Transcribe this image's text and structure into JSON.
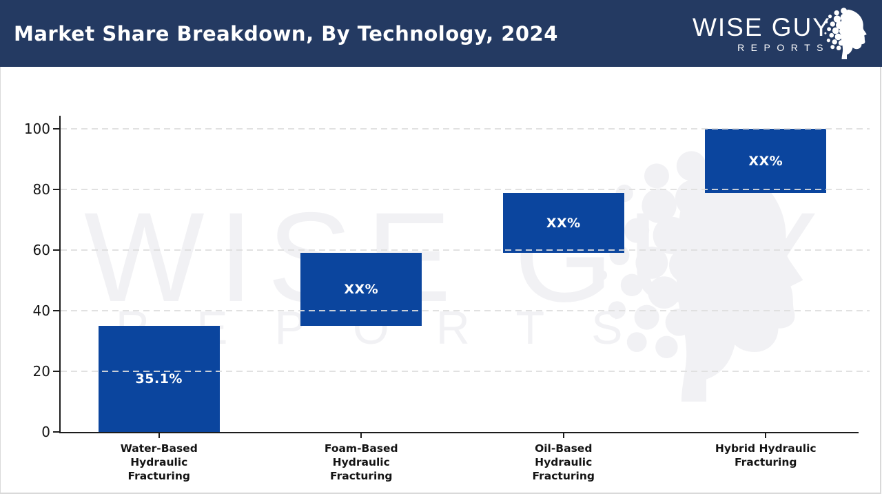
{
  "header": {
    "title": "Market Share Breakdown, By Technology, 2024",
    "logo": {
      "wordmark": "WISE GUY",
      "subtitle": "REPORTS"
    }
  },
  "watermark": {
    "line1": "WISE GUY",
    "line2": "REPORTS"
  },
  "colors": {
    "header_bg": "#243a62",
    "bar": "#0b459e",
    "grid": "#dedede",
    "axis": "#1c1c1c",
    "tick_text": "#141414",
    "bar_label_text": "#ffffff",
    "watermark": "#f1f1f4",
    "frame_border": "#d9d9d9"
  },
  "chart_data": {
    "type": "bar",
    "variant": "waterfall",
    "title": "Market Share Breakdown, By Technology, 2024",
    "categories": [
      "Water-Based Hydraulic Fracturing",
      "Foam-Based Hydraulic Fracturing",
      "Oil-Based Hydraulic Fracturing",
      "Hybrid Hydraulic Fracturing"
    ],
    "category_label_lines": [
      [
        "Water-Based",
        "Hydraulic",
        "Fracturing"
      ],
      [
        "Foam-Based",
        "Hydraulic",
        "Fracturing"
      ],
      [
        "Oil-Based",
        "Hydraulic",
        "Fracturing"
      ],
      [
        "Hybrid Hydraulic",
        "Fracturing"
      ]
    ],
    "bars": [
      {
        "category": "Water-Based Hydraulic Fracturing",
        "start": 0,
        "end": 35.1,
        "label": "35.1%"
      },
      {
        "category": "Foam-Based Hydraulic Fracturing",
        "start": 35.1,
        "end": 59,
        "label": "XX%"
      },
      {
        "category": "Oil-Based Hydraulic Fracturing",
        "start": 59,
        "end": 78.8,
        "label": "XX%"
      },
      {
        "category": "Hybrid Hydraulic Fracturing",
        "start": 78.8,
        "end": 100,
        "label": "XX%"
      }
    ],
    "xlabel": "",
    "ylabel": "",
    "yticks": [
      0,
      20,
      40,
      60,
      80,
      100
    ],
    "ylim": [
      0,
      104
    ],
    "grid": {
      "horizontal": true,
      "style": "dashed",
      "over_bars": true
    },
    "legend": null,
    "bar_color": "#0b459e",
    "bar_label_values_visible": [
      "35.1%",
      "XX%",
      "XX%",
      "XX%"
    ]
  }
}
